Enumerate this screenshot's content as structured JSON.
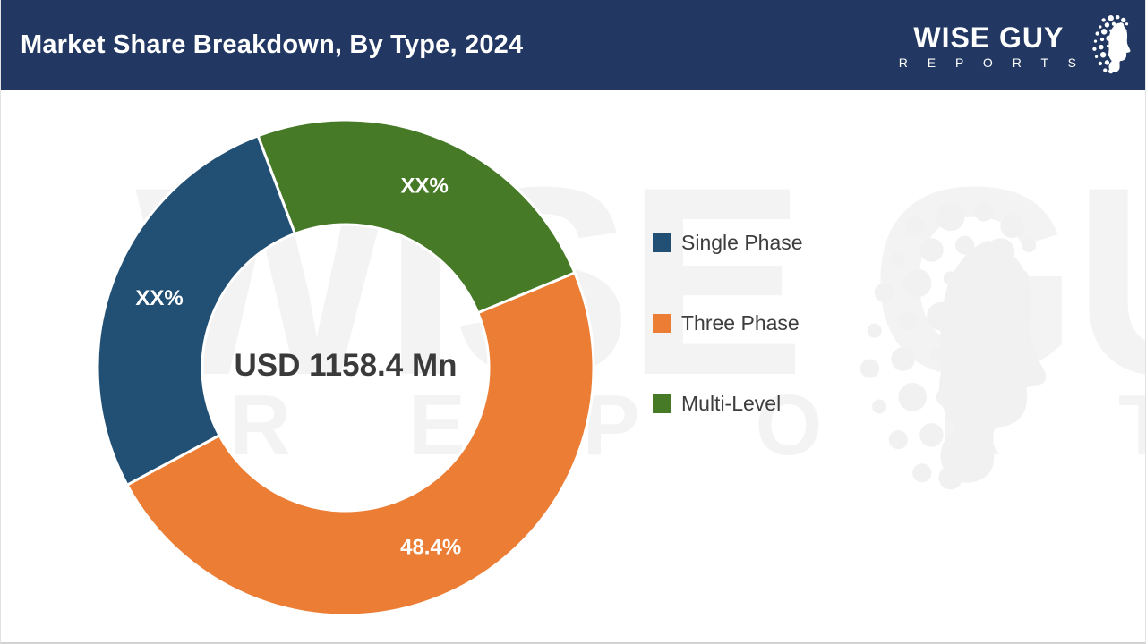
{
  "header": {
    "title": "Market Share Breakdown, By Type, 2024",
    "background_color": "#223862",
    "logo": {
      "line1": "WISE GUY",
      "line2": "R E P O R T S"
    }
  },
  "watermark": {
    "line1": "WISE GUY",
    "line2": "R E P O R T S"
  },
  "chart_data": {
    "type": "pie",
    "donut": true,
    "title": "Market Share Breakdown, By Type, 2024",
    "center_label": "USD 1158.4 Mn",
    "start_angle_deg": -20.7,
    "legend_position": "right",
    "segments": [
      {
        "name": "Single Phase",
        "label": "XX%",
        "value_pct": 27.1,
        "color": "#225075"
      },
      {
        "name": "Three Phase",
        "label": "48.4%",
        "value_pct": 48.4,
        "color": "#EB7D35"
      },
      {
        "name": "Multi-Level",
        "label": "XX%",
        "value_pct": 24.5,
        "color": "#467A26"
      }
    ]
  }
}
